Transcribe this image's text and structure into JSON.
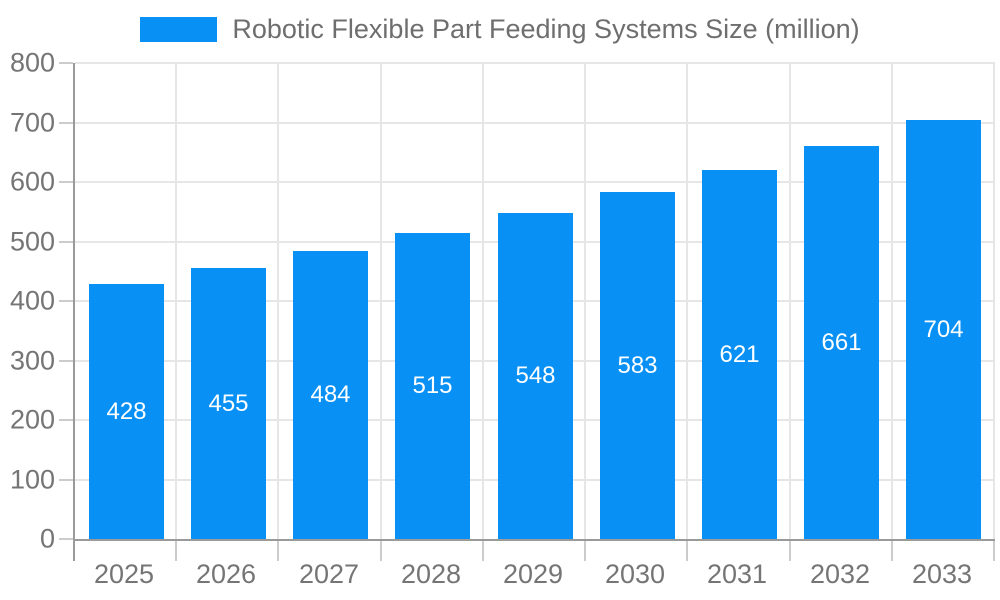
{
  "legend": {
    "label": "Robotic Flexible Part Feeding Systems Size (million)"
  },
  "colors": {
    "bar": "#0890f5",
    "axis_line": "#9a9a9a",
    "gridline": "#e6e6e6",
    "tick": "#cccccc",
    "axis_text": "#757575",
    "legend_text": "#6e6e6e",
    "value_text": "#ffffff"
  },
  "chart_data": {
    "type": "bar",
    "title": "Robotic Flexible Part Feeding Systems Size (million)",
    "categories": [
      "2025",
      "2026",
      "2027",
      "2028",
      "2029",
      "2030",
      "2031",
      "2032",
      "2033"
    ],
    "values": [
      428,
      455,
      484,
      515,
      548,
      583,
      621,
      661,
      704
    ],
    "xlabel": "",
    "ylabel": "",
    "ylim": [
      0,
      800
    ],
    "ytick_step": 100,
    "ytick_labels": [
      "0",
      "100",
      "200",
      "300",
      "400",
      "500",
      "600",
      "700",
      "800"
    ],
    "grid": true,
    "legend_position": "top-center",
    "value_label_position": "inside-center",
    "bar_color": "#0890f5"
  }
}
